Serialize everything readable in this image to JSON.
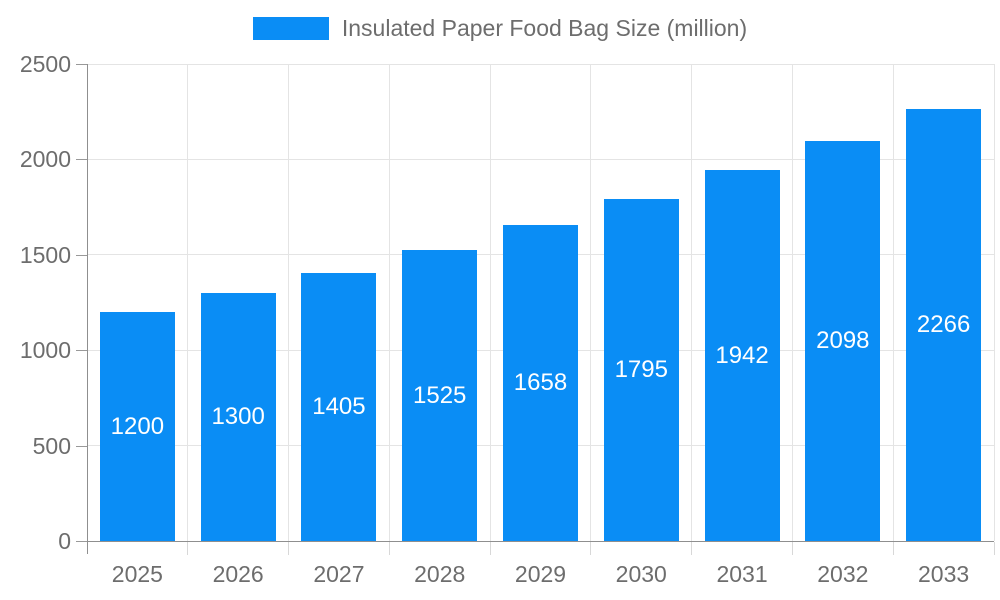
{
  "legend": {
    "label": "Insulated Paper Food Bag Size (million)"
  },
  "chart_data": {
    "type": "bar",
    "title": "Insulated Paper Food Bag Size (million)",
    "categories": [
      "2025",
      "2026",
      "2027",
      "2028",
      "2029",
      "2030",
      "2031",
      "2032",
      "2033"
    ],
    "values": [
      1200,
      1300,
      1405,
      1525,
      1658,
      1795,
      1942,
      2098,
      2266
    ],
    "xlabel": "",
    "ylabel": "",
    "ylim": [
      0,
      2500
    ],
    "yticks": [
      0,
      500,
      1000,
      1500,
      2000,
      2500
    ],
    "grid": true,
    "legend_position": "top",
    "value_labels": "inside-center"
  },
  "colors": {
    "bar": "#0a8df5",
    "grid": "#e4e4e4",
    "axis": "#8f8f8f",
    "major_tick": "#999999",
    "minor_tick": "#d8d8d8",
    "text": "#6d6d6d",
    "value_label": "#ffffff",
    "background": "#ffffff"
  }
}
